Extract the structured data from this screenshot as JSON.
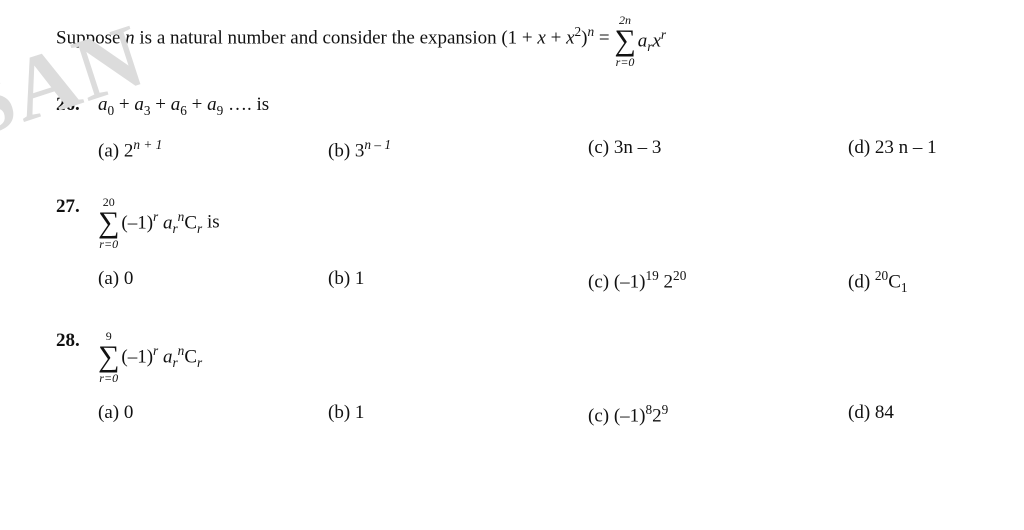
{
  "watermark": "SAN",
  "intro": {
    "lead": "Suppose ",
    "n": "n",
    "mid": " is a natural number and consider the expansion (1 + ",
    "x1": "x",
    "plus": " + ",
    "x2": "x",
    "x2_sup": "2",
    "rp": ")",
    "pow_n": "n",
    "eq": " = ",
    "sum_top": "2n",
    "sum_bot": "r=0",
    "sum_sig": "∑",
    "body_a": "a",
    "body_a_sub": "r",
    "body_x": "x",
    "body_x_sup": "r"
  },
  "q26": {
    "num": "26.",
    "stem_a": "a",
    "s0": "0",
    "plus": " + ",
    "s3": "3",
    "s6": "6",
    "s9": "9",
    "tail": " …. is",
    "opts": {
      "a_pre": "(a) 2",
      "a_sup": "n + 1",
      "b_pre": "(b) 3",
      "b_sup": "n – 1",
      "c": "(c) 3n – 3",
      "d": "(d) 23 n – 1"
    }
  },
  "q27": {
    "num": "27.",
    "sum_top": "20",
    "sum_bot": "r=0",
    "sum_sig": "∑",
    "body_m1": "(–1)",
    "body_r_sup": "r",
    "body_sp": " ",
    "body_a": "a",
    "body_a_sub": "r",
    "body_n_sup": "n",
    "body_C": "C",
    "body_C_sub": "r",
    "tail": "  is",
    "opts": {
      "a": "(a) 0",
      "b": "(b) 1",
      "c_pre": "(c) (–1)",
      "c_sup1": "19",
      "c_sp": " 2",
      "c_sup2": "20",
      "d_pre": "(d) ",
      "d_sup1": "20",
      "d_C": "C",
      "d_sub": "1"
    }
  },
  "q28": {
    "num": "28.",
    "sum_top": "9",
    "sum_bot": "r=0",
    "sum_sig": "∑",
    "body_m1": "(–1)",
    "body_r_sup": "r",
    "body_sp": " ",
    "body_a": "a",
    "body_a_sub": "r",
    "body_n_sup": "n",
    "body_C": "C",
    "body_C_sub": "r",
    "opts": {
      "a": "(a) 0",
      "b": "(b) 1",
      "c_pre": "(c) (–1)",
      "c_sup1": "8",
      "c_two": "2",
      "c_sup2": "9",
      "d": "(d) 84"
    }
  }
}
